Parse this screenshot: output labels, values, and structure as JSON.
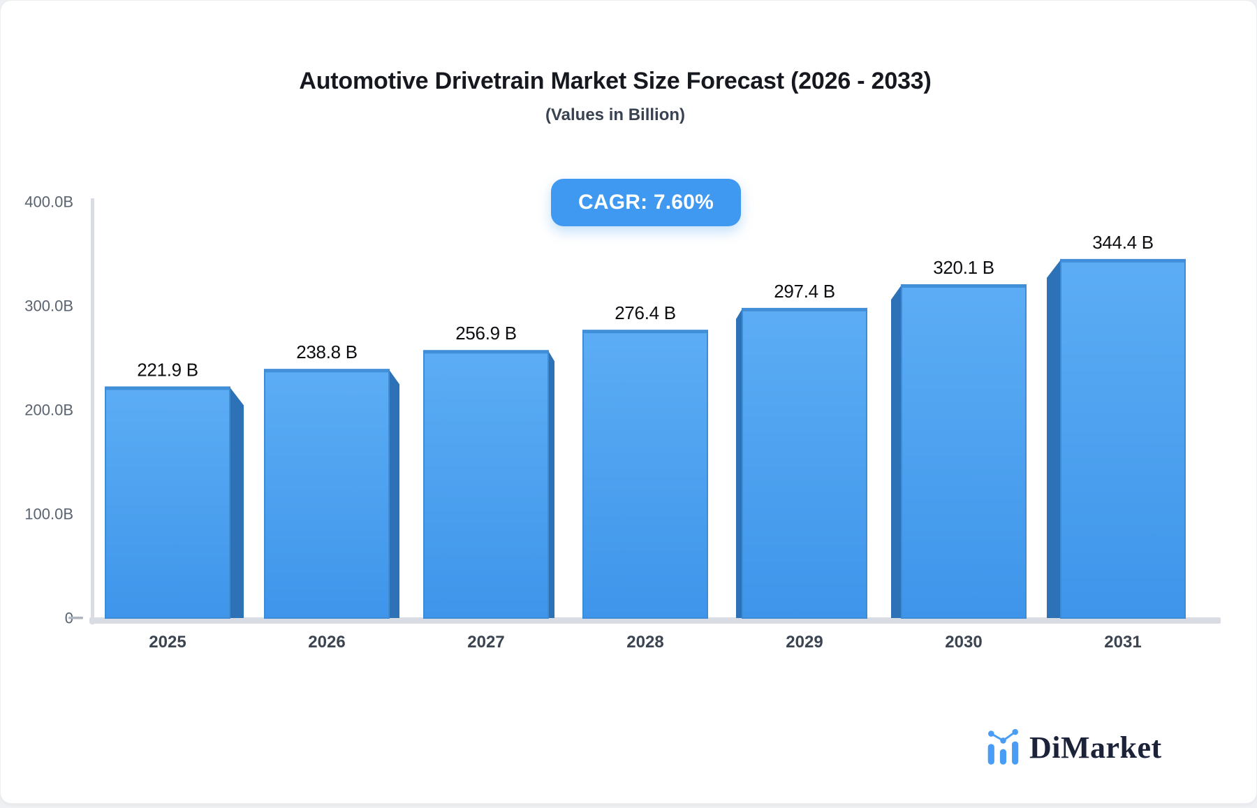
{
  "page": {
    "background": "#eef0f3",
    "card_bg": "#ffffff"
  },
  "header": {
    "title": "Automotive Drivetrain Market Size Forecast (2026 - 2033)",
    "subtitle": "(Values in Billion)",
    "cagr_badge": {
      "label": "CAGR: 7.60%",
      "bg": "#3f99f0",
      "text_color": "#ffffff"
    }
  },
  "chart_data": {
    "type": "bar",
    "title": "Automotive Drivetrain Market Size Forecast (2026 - 2033)",
    "subtitle": "(Values in Billion)",
    "categories": [
      "2025",
      "2026",
      "2027",
      "2028",
      "2029",
      "2030",
      "2031"
    ],
    "values": [
      221.9,
      238.8,
      256.9,
      276.4,
      297.4,
      320.1,
      344.4
    ],
    "value_labels": [
      "221.9 B",
      "238.8 B",
      "256.9 B",
      "276.4 B",
      "297.4 B",
      "320.1 B",
      "344.4 B"
    ],
    "unit": "Billion",
    "xlabel": "",
    "ylabel": "",
    "ylim": [
      0,
      400
    ],
    "yticks": [
      {
        "label": "400.0B",
        "value": 400
      },
      {
        "label": "300.0B",
        "value": 300
      },
      {
        "label": "200.0B",
        "value": 200
      },
      {
        "label": "100.0B",
        "value": 100
      },
      {
        "label": "0",
        "value": 0
      }
    ],
    "grid": false,
    "legend": "none",
    "style": {
      "bar_face_top": "#5cadf4",
      "bar_face_bottom": "#3e95ea",
      "bar_edge": "#3e8bd6",
      "bar_flank": "#2d72b7",
      "axis_color": "#d9dde3",
      "zero_tick_color": "#aeb5be",
      "ytick_color": "#5a6370",
      "xtick_color": "#3b4451",
      "value_label_color": "#0c0e11"
    }
  },
  "footer": {
    "logo_text": "DiMarket",
    "logo_icon": "bar-line-chart-icon",
    "logo_text_color": "#1c2339",
    "logo_icon_color": "#4a9df4"
  }
}
